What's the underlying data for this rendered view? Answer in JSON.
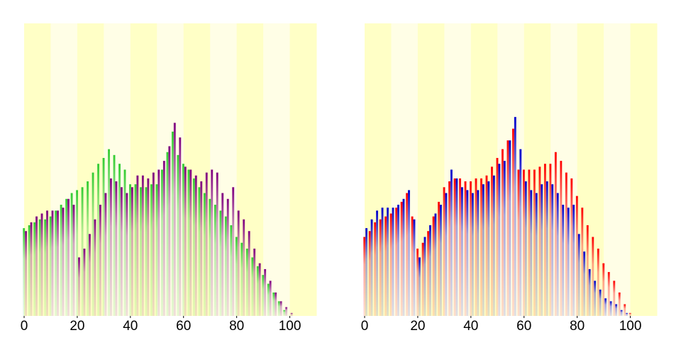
{
  "chart_data": [
    {
      "type": "bar",
      "xlim": [
        0,
        110
      ],
      "ylim": [
        0,
        100
      ],
      "xticks": [
        0,
        20,
        40,
        60,
        80,
        100
      ],
      "x": [
        0,
        2,
        4,
        6,
        8,
        10,
        12,
        14,
        16,
        18,
        20,
        22,
        24,
        26,
        28,
        30,
        32,
        34,
        36,
        38,
        40,
        42,
        44,
        46,
        48,
        50,
        52,
        54,
        56,
        58,
        60,
        62,
        64,
        66,
        68,
        70,
        72,
        74,
        76,
        78,
        80,
        82,
        84,
        86,
        88,
        90,
        92,
        94,
        96,
        98,
        100
      ],
      "series": [
        {
          "color": "#33cc33",
          "values": [
            30,
            31,
            32,
            33,
            33,
            34,
            36,
            38,
            40,
            42,
            43,
            44,
            46,
            49,
            52,
            54,
            57,
            55,
            52,
            50,
            45,
            45,
            44,
            44,
            45,
            45,
            50,
            56,
            63,
            55,
            52,
            50,
            47,
            44,
            42,
            40,
            38,
            36,
            34,
            31,
            27,
            25,
            23,
            20,
            17,
            14,
            11,
            8,
            5,
            2,
            0
          ]
        },
        {
          "color": "#800080",
          "values": [
            29,
            32,
            34,
            35,
            36,
            36,
            36,
            37,
            40,
            38,
            20,
            23,
            28,
            33,
            38,
            42,
            47,
            46,
            44,
            42,
            44,
            48,
            48,
            47,
            49,
            50,
            53,
            58,
            66,
            61,
            51,
            50,
            48,
            46,
            49,
            50,
            49,
            42,
            40,
            44,
            36,
            33,
            29,
            23,
            18,
            16,
            12,
            8,
            5,
            3,
            1
          ]
        }
      ]
    },
    {
      "type": "bar",
      "xlim": [
        0,
        110
      ],
      "ylim": [
        0,
        100
      ],
      "xticks": [
        0,
        20,
        40,
        60,
        80,
        100
      ],
      "x": [
        0,
        2,
        4,
        6,
        8,
        10,
        12,
        14,
        16,
        18,
        20,
        22,
        24,
        26,
        28,
        30,
        32,
        34,
        36,
        38,
        40,
        42,
        44,
        46,
        48,
        50,
        52,
        54,
        56,
        58,
        60,
        62,
        64,
        66,
        68,
        70,
        72,
        74,
        76,
        78,
        80,
        82,
        84,
        86,
        88,
        90,
        92,
        94,
        96,
        98,
        100
      ],
      "series": [
        {
          "color": "#ff0000",
          "values": [
            27,
            29,
            32,
            33,
            34,
            35,
            37,
            39,
            42,
            34,
            23,
            25,
            29,
            34,
            39,
            44,
            46,
            47,
            47,
            46,
            46,
            47,
            47,
            48,
            51,
            54,
            57,
            60,
            64,
            50,
            50,
            50,
            50,
            51,
            52,
            52,
            56,
            53,
            49,
            47,
            41,
            37,
            31,
            27,
            23,
            18,
            15,
            12,
            8,
            4,
            1
          ]
        },
        {
          "color": "#0000cc",
          "values": [
            30,
            33,
            36,
            37,
            37,
            37,
            38,
            40,
            43,
            33,
            20,
            27,
            31,
            35,
            38,
            42,
            50,
            47,
            44,
            43,
            42,
            43,
            45,
            46,
            48,
            52,
            53,
            60,
            68,
            57,
            46,
            43,
            42,
            45,
            46,
            45,
            42,
            38,
            37,
            38,
            28,
            22,
            16,
            12,
            9,
            6,
            5,
            4,
            2,
            1,
            0
          ]
        }
      ]
    }
  ]
}
